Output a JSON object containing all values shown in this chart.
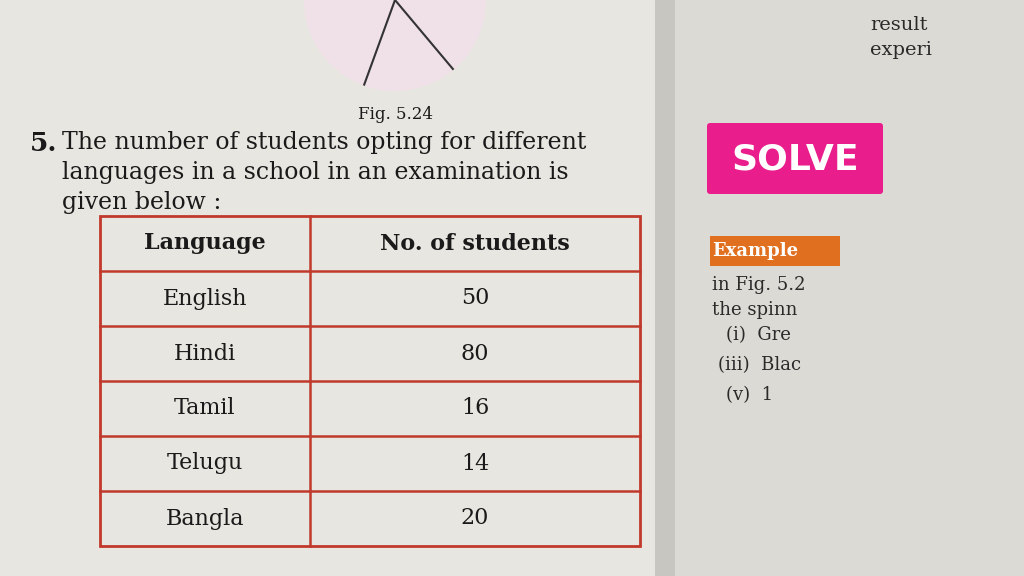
{
  "title": "Fig. 5.24",
  "question_num": "5.",
  "question_text": " The number of students opting for different\n    languages in a school in an examination is\n    given below :",
  "col_headers": [
    "Language",
    "No. of students"
  ],
  "rows": [
    [
      "English",
      "50"
    ],
    [
      "Hindi",
      "80"
    ],
    [
      "Tamil",
      "16"
    ],
    [
      "Telugu",
      "14"
    ],
    [
      "Bangla",
      "20"
    ]
  ],
  "bg_color": "#d8d8d8",
  "page_color": "#e8e6e0",
  "right_page_color": "#dcdad4",
  "table_border_color": "#c0392b",
  "text_color": "#1a1a1a",
  "solve_color": "#e91e8c",
  "example_color": "#e91e8c",
  "title_fontsize": 12,
  "question_fontsize": 17,
  "table_fontsize": 16,
  "right_text_color": "#2a2a2a"
}
